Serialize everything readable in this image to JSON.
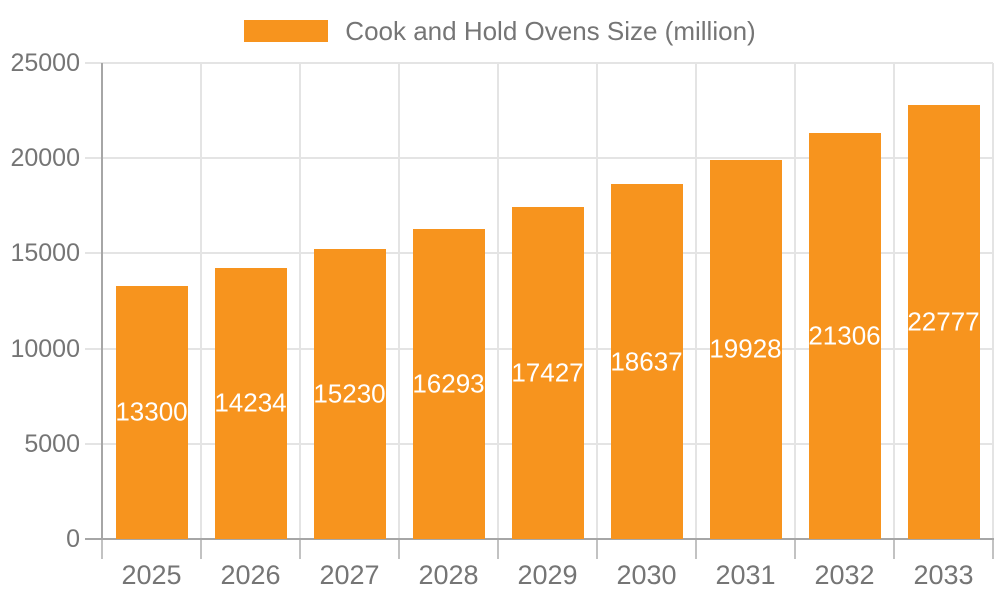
{
  "legend": {
    "series_label": "Cook and Hold Ovens Size (million)"
  },
  "chart_data": {
    "type": "bar",
    "title": "",
    "categories": [
      "2025",
      "2026",
      "2027",
      "2028",
      "2029",
      "2030",
      "2031",
      "2032",
      "2033"
    ],
    "series": [
      {
        "name": "Cook and Hold Ovens Size (million)",
        "values": [
          13300,
          14234,
          15230,
          16293,
          17427,
          18637,
          19928,
          21306,
          22777
        ]
      }
    ],
    "xlabel": "",
    "ylabel": "",
    "ylim": [
      0,
      25000
    ],
    "yticks": [
      0,
      5000,
      10000,
      15000,
      20000,
      25000
    ],
    "grid": true,
    "legend_position": "top-center",
    "value_label_position": "inside-center",
    "colors": {
      "bar": "#f7941e",
      "value_label": "#ffffff",
      "axis_label": "#757575",
      "gridline": "#e4e4e4",
      "tick": "#c2c2c2",
      "axis_line": "#a6a6a6",
      "background": "#ffffff"
    }
  }
}
